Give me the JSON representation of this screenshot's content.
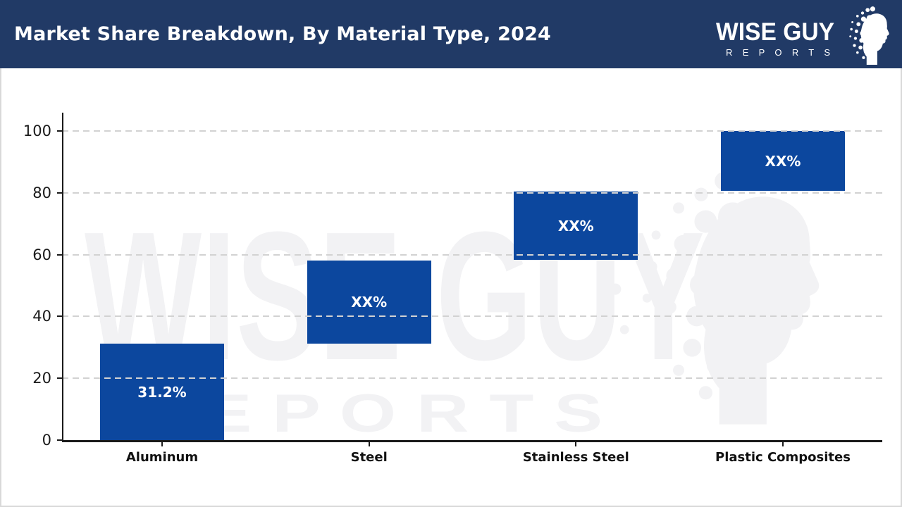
{
  "header": {
    "title": "Market Share Breakdown, By Material Type, 2024",
    "logo": {
      "line1": "WISE GUY",
      "line2": "R E P O R T S"
    }
  },
  "watermark": {
    "line1": "WISE GUY",
    "line2": "R E P O R T S"
  },
  "colors": {
    "header_bg": "#213a66",
    "bar": "#0c479e",
    "bar_label": "#ffffff",
    "grid": "#d2d2d2",
    "axis": "#1a1a1a",
    "watermark": "#f2f2f4",
    "logo_text": "#ffffff"
  },
  "chart_data": {
    "type": "bar",
    "subtype": "waterfall",
    "title": "Market Share Breakdown, By Material Type, 2024",
    "xlabel": "",
    "ylabel": "",
    "categories": [
      "Aluminum",
      "Steel",
      "Stainless Steel",
      "Plastic Composites"
    ],
    "segments": [
      {
        "category": "Aluminum",
        "start": 0,
        "end": 31.2,
        "label": "31.2%"
      },
      {
        "category": "Steel",
        "start": 31.2,
        "end": 58.2,
        "label": "XX%"
      },
      {
        "category": "Stainless Steel",
        "start": 58.2,
        "end": 80.3,
        "label": "XX%"
      },
      {
        "category": "Plastic Composites",
        "start": 80.6,
        "end": 100,
        "label": "XX%"
      }
    ],
    "y_ticks": [
      0,
      20,
      40,
      60,
      80,
      100
    ],
    "ylim": [
      0,
      105
    ],
    "grid": "dashed-horizontal",
    "legend": "none"
  }
}
